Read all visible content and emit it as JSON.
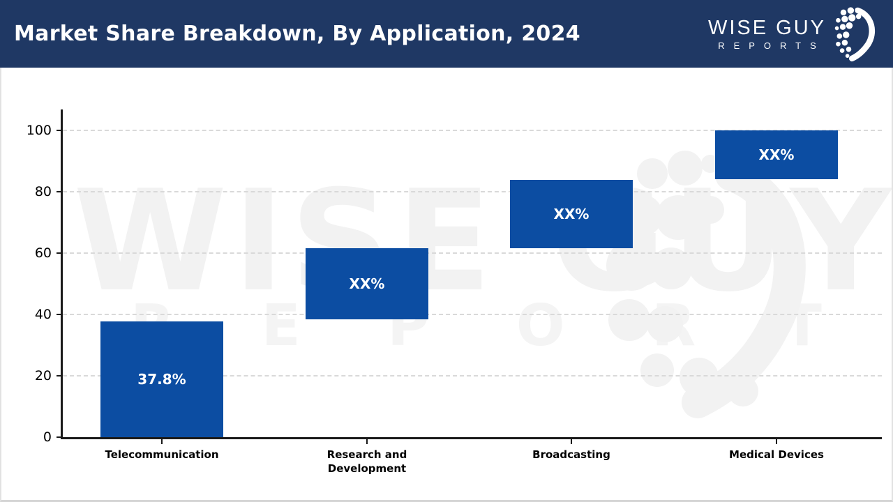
{
  "header": {
    "title": "Market Share Breakdown, By Application, 2024",
    "bg_color": "#1f3864",
    "logo": {
      "wordmark": "WISE GUY",
      "subtitle": "REPORTS"
    }
  },
  "watermark": {
    "wordmark": "WISE GUY",
    "subtitle": "R E P O R T S"
  },
  "chart_data": {
    "type": "bar",
    "subtype": "floating-waterfall",
    "title": "Market Share Breakdown, By Application, 2024",
    "categories": [
      "Telecommunication",
      "Research and Development",
      "Broadcasting",
      "Medical Devices"
    ],
    "series": [
      {
        "category": "Telecommunication",
        "start": 0,
        "end": 37.8,
        "label": "37.8%"
      },
      {
        "category": "Research and Development",
        "start": 38.4,
        "end": 61.5,
        "label": "XX%"
      },
      {
        "category": "Broadcasting",
        "start": 61.5,
        "end": 83.8,
        "label": "XX%"
      },
      {
        "category": "Medical Devices",
        "start": 84,
        "end": 100,
        "label": "XX%"
      }
    ],
    "xlabel": "",
    "ylabel": "",
    "yticks": [
      0,
      20,
      40,
      60,
      80,
      100
    ],
    "ylim": [
      0,
      107
    ],
    "grid": "horizontal-dashed",
    "legend_position": "none",
    "bar_color": "#0c4da2",
    "bar_label_color": "#ffffff",
    "grid_color": "#d9d9d9",
    "axis_color": "#1a1a1a",
    "tick_label_color": "#000000"
  }
}
